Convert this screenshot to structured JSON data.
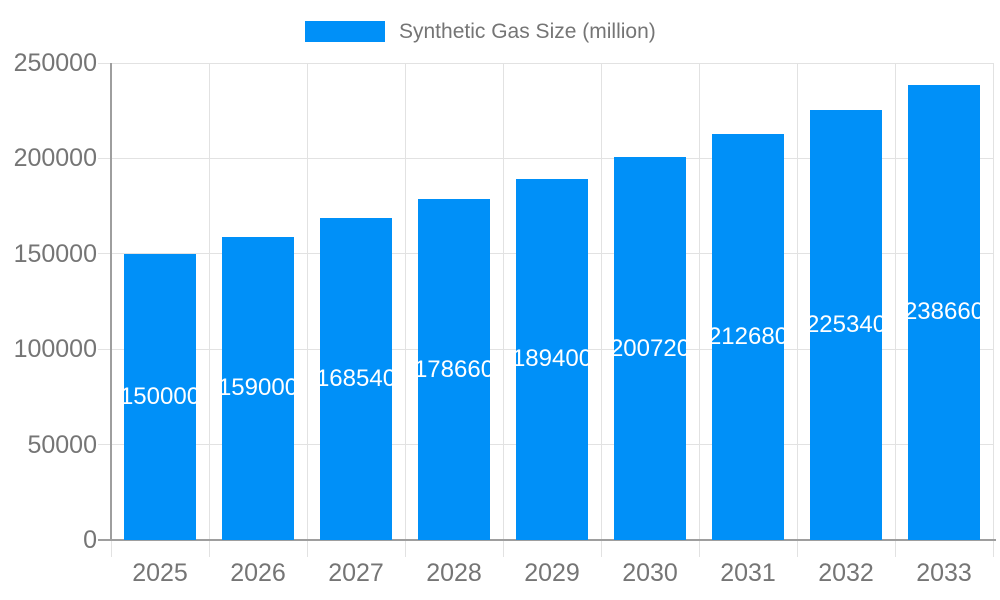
{
  "legend": {
    "label": "Synthetic Gas Size (million)"
  },
  "chart_data": {
    "type": "bar",
    "title": "Synthetic Gas Size (million)",
    "xlabel": "",
    "ylabel": "",
    "categories": [
      "2025",
      "2026",
      "2027",
      "2028",
      "2029",
      "2030",
      "2031",
      "2032",
      "2033"
    ],
    "values": [
      150000,
      159000,
      168540,
      178660,
      189400,
      200720,
      212680,
      225340,
      238660
    ],
    "bar_labels": [
      "150000",
      "159000",
      "168540",
      "178660",
      "189400",
      "200720",
      "212680",
      "225340",
      "238660"
    ],
    "ylim": [
      0,
      250000
    ],
    "y_ticks": [
      0,
      50000,
      100000,
      150000,
      200000,
      250000
    ],
    "y_tick_labels": [
      "0",
      "50000",
      "100000",
      "150000",
      "200000",
      "250000"
    ],
    "grid": true,
    "legend_position": "top-center",
    "colors": {
      "bar": "#0090f8",
      "gridline": "#e2e2e2",
      "axis_line": "#9e9e9e",
      "tick_label_text": "#757575",
      "legend_text": "#757575",
      "bar_label_text": "#ffffff",
      "background": "#ffffff"
    }
  }
}
